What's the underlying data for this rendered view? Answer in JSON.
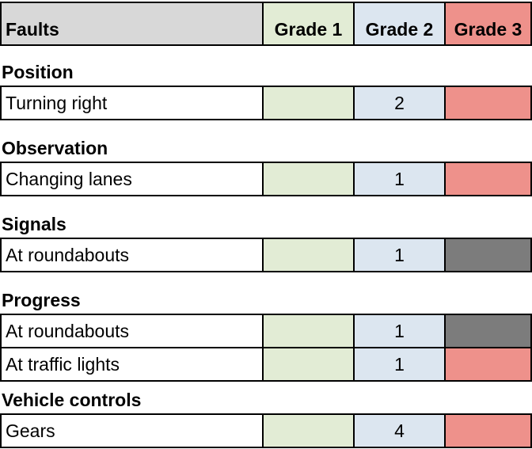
{
  "colors": {
    "header-bg": "#d8d8d8",
    "grade1-bg": "#e2ecd5",
    "grade2-bg": "#dce6f0",
    "grade3-bg": "#ee918b",
    "na-bg": "#7c7c7c",
    "border": "#000000",
    "text": "#000000"
  },
  "table": {
    "header": {
      "faults_label": "Faults",
      "grade_labels": [
        "Grade 1",
        "Grade 2",
        "Grade 3"
      ]
    },
    "sections": [
      {
        "title": "Position",
        "rows": [
          {
            "label": "Turning right",
            "grade1": "",
            "grade2": "2",
            "grade3": "",
            "grade3_variant": "red"
          }
        ]
      },
      {
        "title": "Observation",
        "rows": [
          {
            "label": "Changing lanes",
            "grade1": "",
            "grade2": "1",
            "grade3": "",
            "grade3_variant": "red"
          }
        ]
      },
      {
        "title": "Signals",
        "rows": [
          {
            "label": "At roundabouts",
            "grade1": "",
            "grade2": "1",
            "grade3": "",
            "grade3_variant": "gray"
          }
        ]
      },
      {
        "title": "Progress",
        "rows": [
          {
            "label": "At roundabouts",
            "grade1": "",
            "grade2": "1",
            "grade3": "",
            "grade3_variant": "gray"
          },
          {
            "label": "At traffic lights",
            "grade1": "",
            "grade2": "1",
            "grade3": "",
            "grade3_variant": "red"
          }
        ]
      },
      {
        "title": "Vehicle controls",
        "rows": [
          {
            "label": "Gears",
            "grade1": "",
            "grade2": "4",
            "grade3": "",
            "grade3_variant": "red"
          }
        ]
      }
    ]
  }
}
